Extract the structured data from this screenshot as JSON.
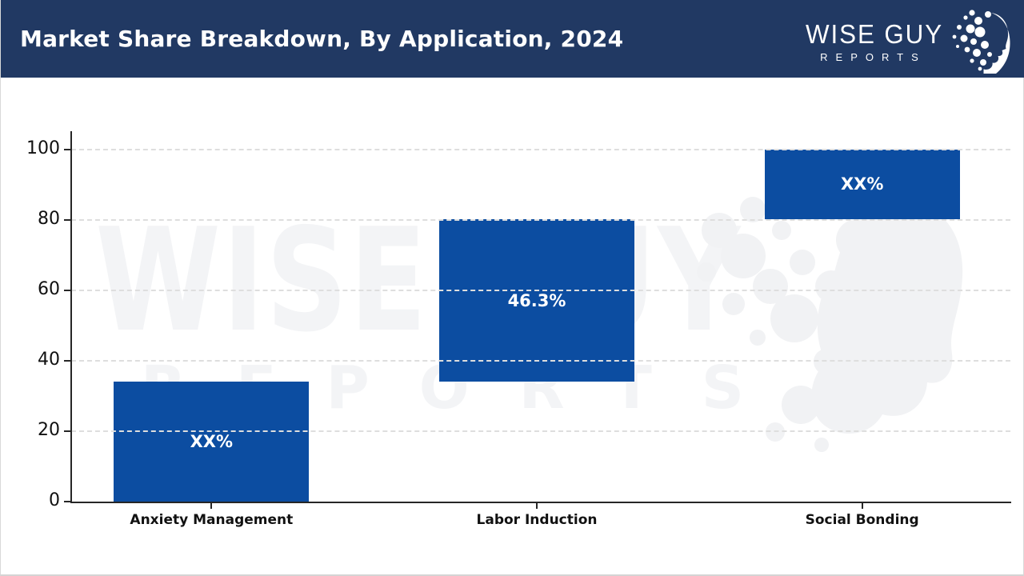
{
  "header": {
    "title": "Market Share Breakdown, By Application, 2024",
    "bg_color": "#213963",
    "logo": {
      "brand_line1": "WISE GUY",
      "brand_line2": "REPORTS"
    }
  },
  "watermark": {
    "line1": "WISE GUY",
    "line2": "REPORTS"
  },
  "chart_data": {
    "type": "bar",
    "subtype": "floating-waterfall",
    "title": "Market Share Breakdown, By Application, 2024",
    "categories": [
      "Anxiety Management",
      "Labor Induction",
      "Social Bonding"
    ],
    "bars": [
      {
        "category": "Anxiety Management",
        "start": 0,
        "end": 34,
        "label": "XX%"
      },
      {
        "category": "Labor Induction",
        "start": 34,
        "end": 80.3,
        "label": "46.3%"
      },
      {
        "category": "Social Bonding",
        "start": 80.3,
        "end": 100,
        "label": "XX%"
      }
    ],
    "yticks": [
      0,
      20,
      40,
      60,
      80,
      100
    ],
    "ylim": [
      0,
      105
    ],
    "xlabel": "",
    "ylabel": "",
    "grid": "horizontal-dashed",
    "legend": "none",
    "bar_color": "#0c4da1",
    "bar_label_color": "#ffffff",
    "axis_color": "#262626",
    "gridline_color": "#dedede"
  }
}
